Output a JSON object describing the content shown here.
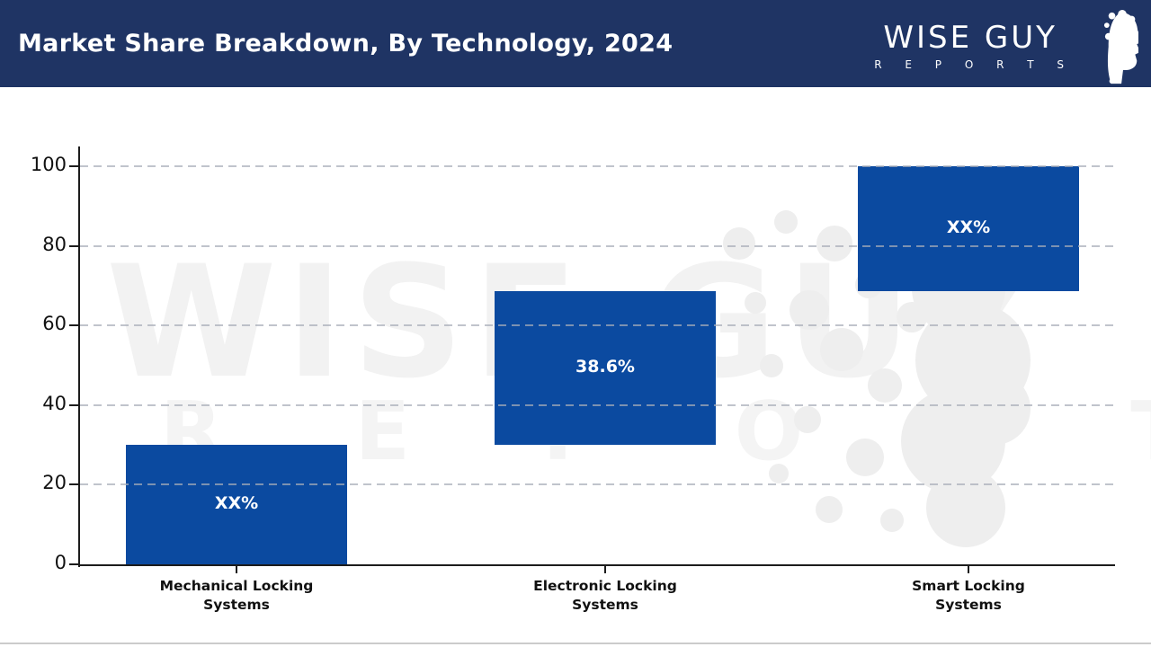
{
  "header": {
    "title": "Market Share Breakdown, By Technology, 2024",
    "bg_color": "#1f3464",
    "logo": {
      "line1": "WISE GUY",
      "line2": "R E P O R T S"
    }
  },
  "watermark": {
    "line1": "WISE GUY",
    "line2": "R E P O R T S"
  },
  "chart_data": {
    "type": "bar",
    "subtype": "floating-waterfall",
    "title": "Market Share Breakdown, By Technology, 2024",
    "categories": [
      "Mechanical Locking Systems",
      "Electronic Locking Systems",
      "Smart Locking Systems"
    ],
    "category_lines": [
      [
        "Mechanical Locking",
        "Systems"
      ],
      [
        "Electronic Locking",
        "Systems"
      ],
      [
        "Smart Locking",
        "Systems"
      ]
    ],
    "segments": [
      {
        "category": "Mechanical Locking Systems",
        "start": 0,
        "end": 30,
        "value": 30,
        "label": "XX%"
      },
      {
        "category": "Electronic Locking Systems",
        "start": 30,
        "end": 68.6,
        "value": 38.6,
        "label": "38.6%"
      },
      {
        "category": "Smart Locking Systems",
        "start": 68.6,
        "end": 100,
        "value": 31.4,
        "label": "XX%"
      }
    ],
    "ylim": [
      0,
      100
    ],
    "yticks": [
      0,
      20,
      40,
      60,
      80,
      100
    ],
    "grid": "dashed-horizontal",
    "legend": "none",
    "bar_color": "#0b4aa0",
    "bar_label_color": "#ffffff",
    "axis_color": "#1c1c1c",
    "tick_label_color": "#111111"
  }
}
